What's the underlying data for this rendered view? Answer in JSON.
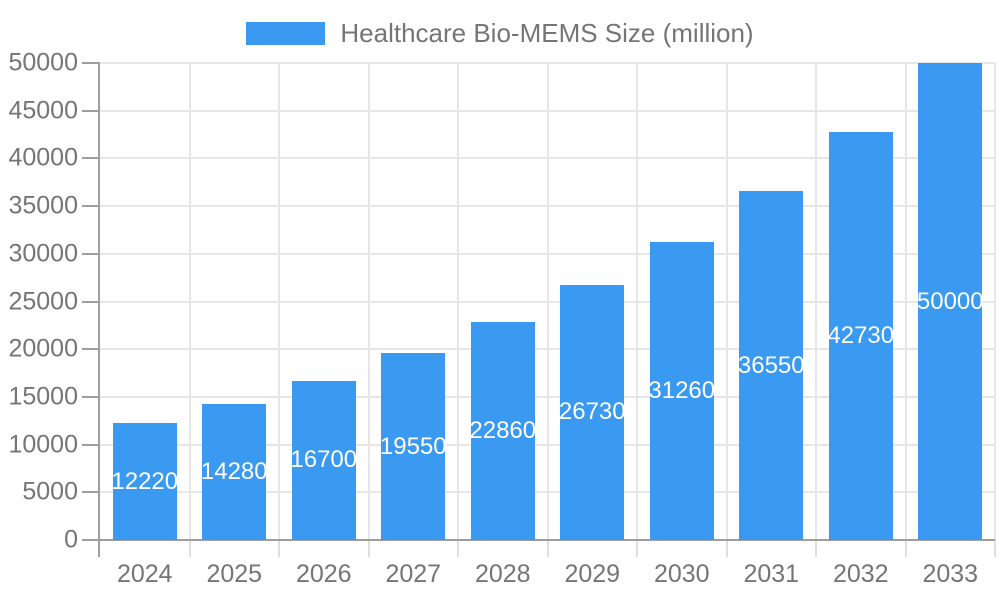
{
  "legend": {
    "label": "Healthcare Bio-MEMS Size (million)"
  },
  "chart_data": {
    "type": "bar",
    "title": "Healthcare Bio-MEMS Size (million)",
    "categories": [
      "2024",
      "2025",
      "2026",
      "2027",
      "2028",
      "2029",
      "2030",
      "2031",
      "2032",
      "2033"
    ],
    "values": [
      12220,
      14280,
      16700,
      19550,
      22860,
      26730,
      31260,
      36550,
      42730,
      50000
    ],
    "xlabel": "",
    "ylabel": "",
    "ylim": [
      0,
      50000
    ],
    "ytick_step": 5000,
    "grid": true,
    "legend_position": "top",
    "colors": {
      "bar": "#3a99f0",
      "bar_value_text": "#ffffff",
      "axis": "#9e9e9e",
      "grid": "#e7e7e7",
      "tick": "#dedede",
      "text": "#757575"
    }
  }
}
